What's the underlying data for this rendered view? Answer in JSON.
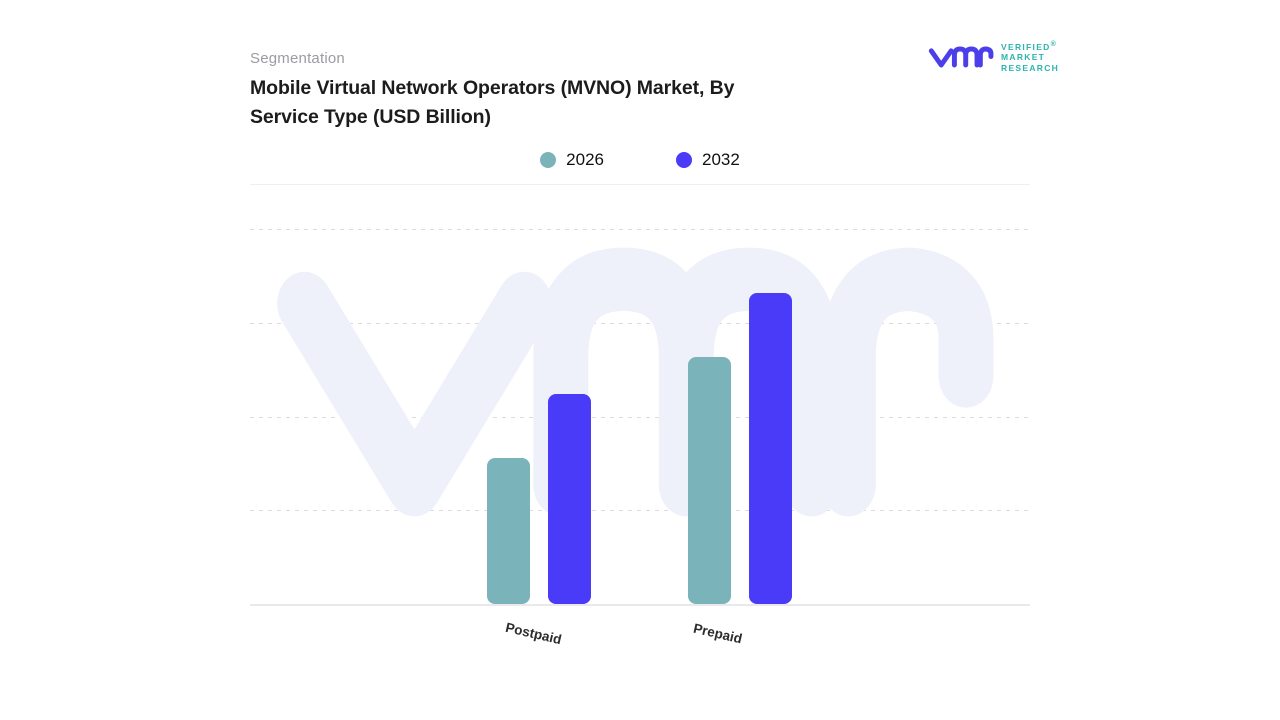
{
  "page": {
    "background": "#ffffff"
  },
  "header": {
    "eyebrow": "Segmentation",
    "title_line1": "Mobile Virtual Network Operators (MVNO) Market, By",
    "title_line2": "Service Type (USD Billion)"
  },
  "logo": {
    "monogram": "vmr",
    "word1": "VERIFIED",
    "word2": "MARKET",
    "word3": "RESEARCH",
    "registered_mark": "®",
    "monogram_color": "#4C3EE8",
    "wordmark_color": "#2BB5AD"
  },
  "legend": [
    {
      "label": "2026",
      "color": "#7AB4BA"
    },
    {
      "label": "2032",
      "color": "#4A3BF8"
    }
  ],
  "watermark": {
    "glyph": "vmr",
    "color": "#EEF0FA"
  },
  "chart_data": {
    "type": "bar",
    "title": "Mobile Virtual Network Operators (MVNO) Market, By Service Type (USD Billion)",
    "categories": [
      "Postpaid",
      "Prepaid"
    ],
    "series": [
      {
        "name": "2026",
        "color": "#7AB4BA",
        "values": [
          39,
          66
        ]
      },
      {
        "name": "2032",
        "color": "#4A3BF8",
        "values": [
          56,
          83
        ]
      }
    ],
    "xlabel": "",
    "ylabel": "",
    "ylim": [
      0,
      100
    ],
    "units": "USD Billion (y-axis unlabeled; values are relative estimates as % of plot height)",
    "grid": "horizontal-dashed",
    "legend_position": "top-center"
  }
}
